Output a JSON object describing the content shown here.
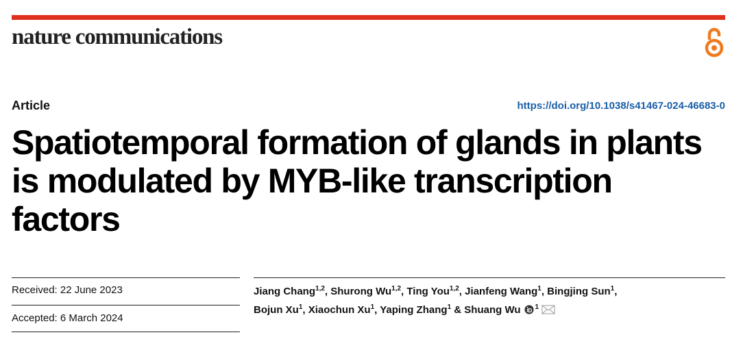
{
  "header": {
    "journal": "nature communications",
    "article_type": "Article",
    "doi": "https://doi.org/10.1038/s41467-024-46683-0"
  },
  "title_lines": [
    "Spatiotemporal formation of glands in plants",
    "is modulated by MYB-like transcription",
    "factors"
  ],
  "dates": {
    "received": "Received: 22 June 2023",
    "accepted": "Accepted: 6 March 2024"
  },
  "author_lines": [
    [
      {
        "name": "Jiang Chang",
        "affil": "1,2",
        "sep": ", "
      },
      {
        "name": "Shurong Wu",
        "affil": "1,2",
        "sep": ", "
      },
      {
        "name": "Ting You",
        "affil": "1,2",
        "sep": ", "
      },
      {
        "name": "Jianfeng Wang",
        "affil": "1",
        "sep": ", "
      },
      {
        "name": "Bingjing Sun",
        "affil": "1",
        "sep": ","
      }
    ],
    [
      {
        "name": "Bojun Xu",
        "affil": "1",
        "sep": ", "
      },
      {
        "name": "Xiaochun Xu",
        "affil": "1",
        "sep": ", "
      },
      {
        "name": "Yaping Zhang",
        "affil": "1",
        "sep": " & "
      },
      {
        "name": "Shuang Wu",
        "affil": "1",
        "corresponding": true
      }
    ]
  ]
}
